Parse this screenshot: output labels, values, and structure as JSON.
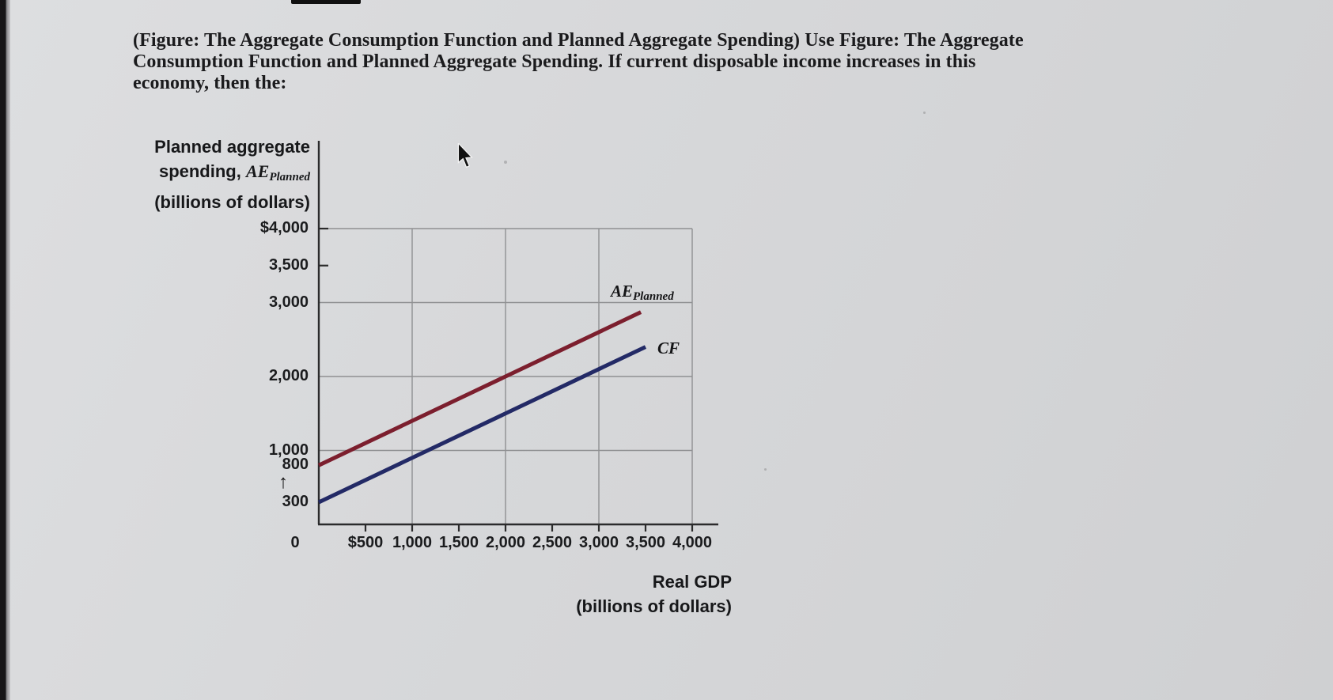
{
  "page": {
    "background_color": "#d6d7d9"
  },
  "icons": {
    "mouse_cursor": "pointer-arrow",
    "y_axis_arrow": "↑"
  },
  "question": {
    "lines": [
      "(Figure: The Aggregate Consumption Function and Planned Aggregate Spending) Use Figure: The Aggregate",
      "Consumption Function and Planned Aggregate Spending. If current disposable income increases in this",
      "economy, then the:"
    ]
  },
  "chart_data": {
    "type": "line",
    "xlabel": "Real GDP (billions of dollars)",
    "xlabel_lines": [
      "Real GDP",
      "(billions of dollars)"
    ],
    "ylabel": "Planned aggregate spending, AE_Planned (billions of dollars)",
    "ylabel_lines": {
      "line1": "Planned aggregate",
      "line2_prefix": "spending, ",
      "line2_var": "AE",
      "line2_var_sub": "Planned",
      "line3": "(billions of dollars)"
    },
    "xlim": [
      0,
      4000
    ],
    "ylim": [
      0,
      4000
    ],
    "grid": true,
    "grid_line_values": [
      1000,
      2000,
      3000,
      4000
    ],
    "x_ticks": [
      {
        "value": 0,
        "label": "0"
      },
      {
        "value": 500,
        "label": "$500"
      },
      {
        "value": 1000,
        "label": "1,000"
      },
      {
        "value": 1500,
        "label": "1,500"
      },
      {
        "value": 2000,
        "label": "2,000"
      },
      {
        "value": 2500,
        "label": "2,500"
      },
      {
        "value": 3000,
        "label": "3,000"
      },
      {
        "value": 3500,
        "label": "3,500"
      },
      {
        "value": 4000,
        "label": "4,000"
      }
    ],
    "y_ticks": [
      {
        "value": 4000,
        "label": "$4,000",
        "tick": true
      },
      {
        "value": 3500,
        "label": "3,500",
        "tick": true
      },
      {
        "value": 3000,
        "label": "3,000",
        "tick": false
      },
      {
        "value": 2000,
        "label": "2,000",
        "tick": false
      },
      {
        "value": 1000,
        "label": "1,000",
        "tick": false
      },
      {
        "value": 800,
        "label": "800",
        "tick": false
      },
      {
        "value": 300,
        "label": "300",
        "tick": false
      }
    ],
    "series": [
      {
        "name": "AE_Planned",
        "label_main": "AE",
        "label_sub": "Planned",
        "color": "#7c1f2e",
        "y_intercept": 800,
        "points": [
          [
            0,
            800
          ],
          [
            3450,
            2870
          ]
        ]
      },
      {
        "name": "CF",
        "label_main": "CF",
        "label_sub": "",
        "color": "#232a66",
        "y_intercept": 300,
        "points": [
          [
            0,
            300
          ],
          [
            3500,
            2400
          ]
        ]
      }
    ],
    "legend": "none"
  }
}
